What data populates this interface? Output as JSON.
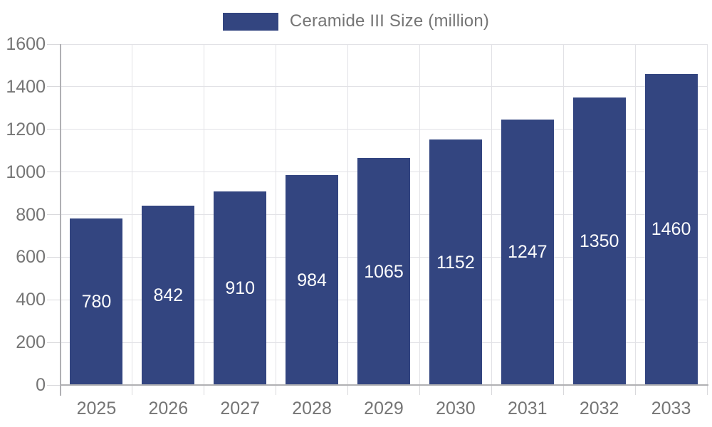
{
  "chart_data": {
    "type": "bar",
    "title": "Ceramide III Size (million)",
    "legend": {
      "position": "top",
      "entries": [
        "Ceramide III Size (million)"
      ]
    },
    "categories": [
      "2025",
      "2026",
      "2027",
      "2028",
      "2029",
      "2030",
      "2031",
      "2032",
      "2033"
    ],
    "series": [
      {
        "name": "Ceramide III Size (million)",
        "values": [
          780,
          842,
          910,
          984,
          1065,
          1152,
          1247,
          1350,
          1460
        ]
      }
    ],
    "value_labels": [
      "780",
      "842",
      "910",
      "984",
      "1065",
      "1152",
      "1247",
      "1350",
      "1460"
    ],
    "xlabel": "",
    "ylabel": "",
    "ylim": [
      0,
      1600
    ],
    "ytick_step": 200,
    "ytick_labels": [
      "0",
      "200",
      "400",
      "600",
      "800",
      "1000",
      "1200",
      "1400",
      "1600"
    ],
    "grid": true,
    "colors": {
      "bar": "#334580",
      "bar_value_text": "#fdfdfd",
      "axis_text": "#757575",
      "grid_line": "#e2e2e6",
      "axis_line": "#b0b0b3",
      "tick_line": "#d9d9dc",
      "background": "#ffffff"
    }
  }
}
